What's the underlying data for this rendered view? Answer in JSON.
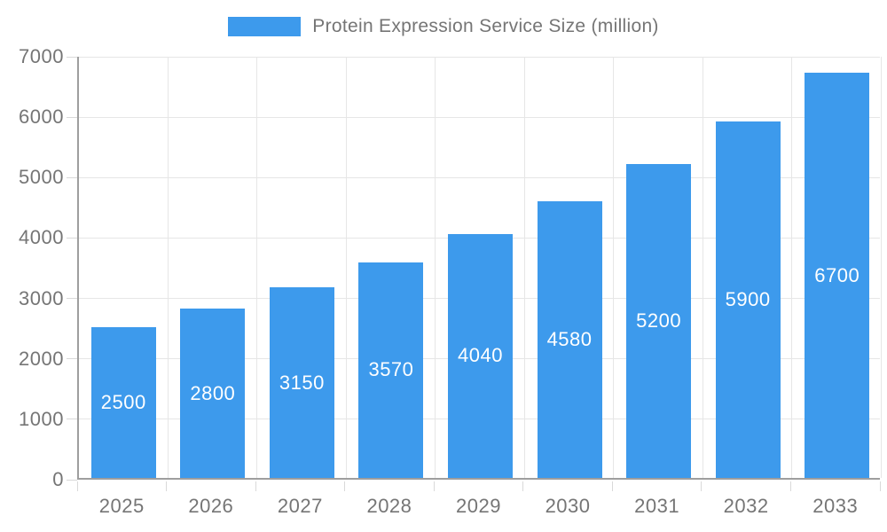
{
  "legend": {
    "label": "Protein Expression Service Size (million)"
  },
  "colors": {
    "bar": "#3d9aec",
    "gridline": "#e6e6e6",
    "axis_line": "#9e9e9e",
    "tick": "#d9d9d9",
    "axis_text": "#757575",
    "value_text": "#ffffff",
    "background": "#ffffff"
  },
  "chart_data": {
    "type": "bar",
    "title": "Protein Expression Service Size (million)",
    "categories": [
      "2025",
      "2026",
      "2027",
      "2028",
      "2029",
      "2030",
      "2031",
      "2032",
      "2033"
    ],
    "values": [
      2500,
      2800,
      3150,
      3570,
      4040,
      4580,
      5200,
      5900,
      6700
    ],
    "xlabel": "",
    "ylabel": "",
    "ylim": [
      0,
      7000
    ],
    "ytick_step": 1000,
    "ytick_labels": [
      "0",
      "1000",
      "2000",
      "3000",
      "4000",
      "5000",
      "6000",
      "7000"
    ],
    "grid": true,
    "legend_position": "top-center",
    "value_labels": "inside-center-white"
  }
}
